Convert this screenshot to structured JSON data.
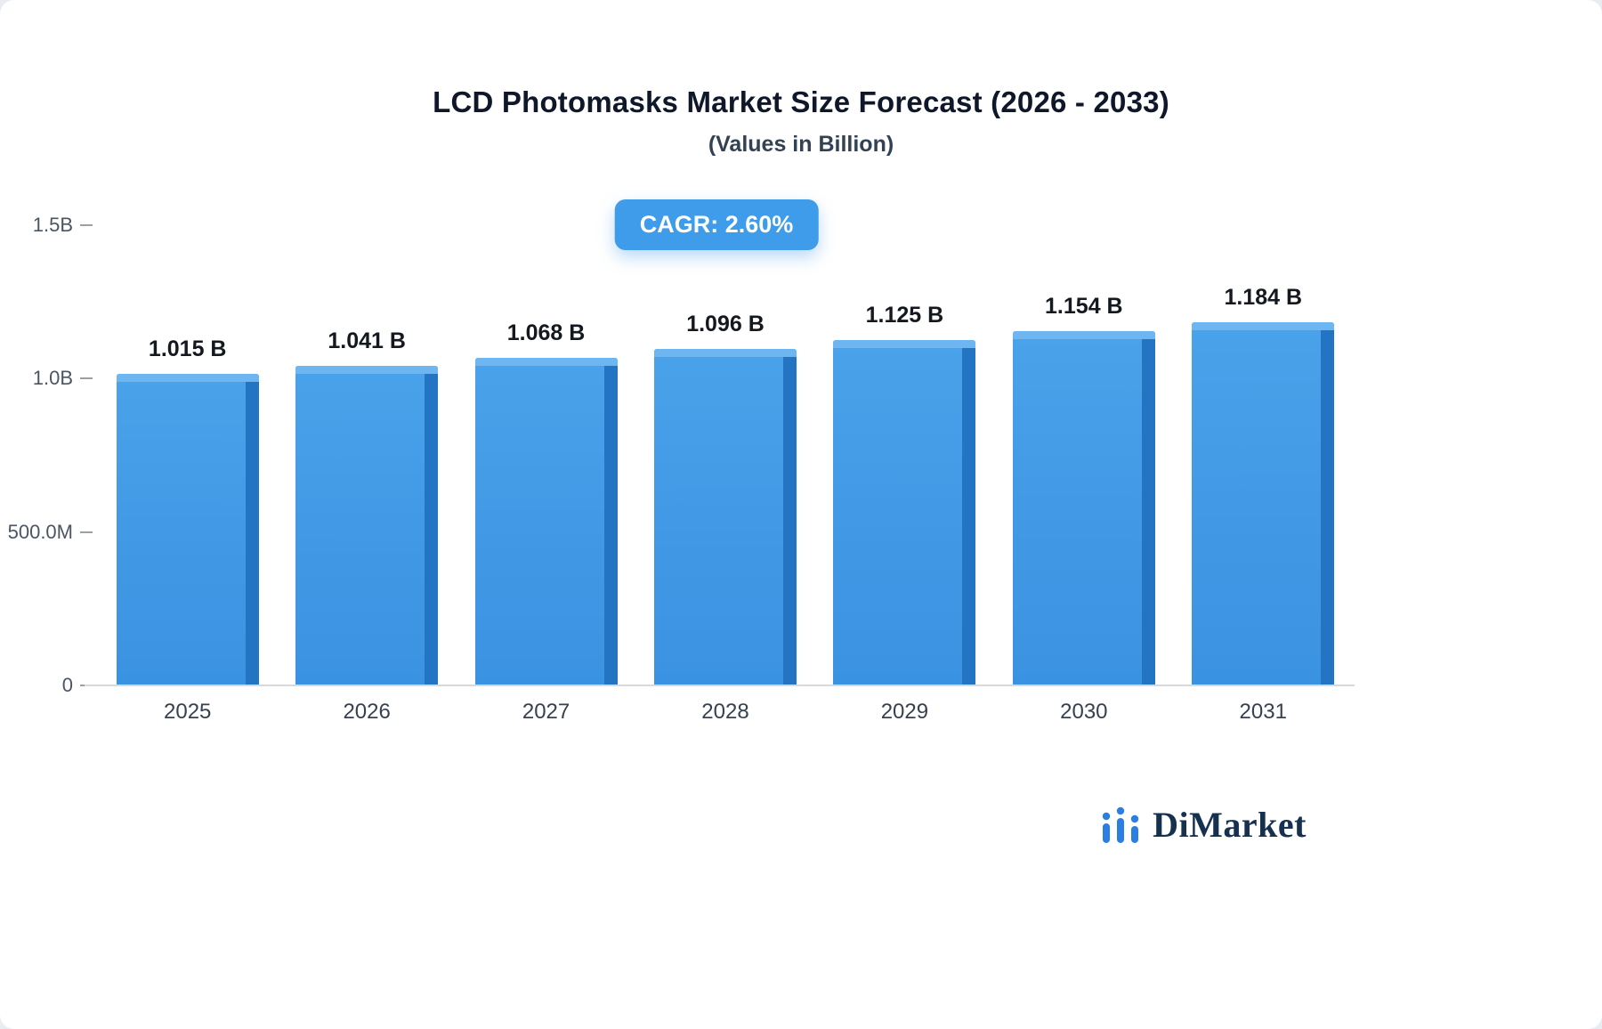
{
  "title": "LCD Photomasks Market Size Forecast (2026 - 2033)",
  "subtitle": "(Values in Billion)",
  "cagr_badge": "CAGR: 2.60%",
  "brand": {
    "name": "DiMarket"
  },
  "chart_data": {
    "type": "bar",
    "categories": [
      "2025",
      "2026",
      "2027",
      "2028",
      "2029",
      "2030",
      "2031"
    ],
    "values": [
      1.015,
      1.041,
      1.068,
      1.096,
      1.125,
      1.154,
      1.184
    ],
    "value_labels": [
      "1.015 B",
      "1.041 B",
      "1.068 B",
      "1.096 B",
      "1.125 B",
      "1.154 B",
      "1.184 B"
    ],
    "title": "LCD Photomasks Market Size Forecast (2026 - 2033)",
    "xlabel": "",
    "ylabel": "",
    "ylim": [
      0,
      1.5
    ],
    "yticks": [
      {
        "value": 1.5,
        "label": "1.5B"
      },
      {
        "value": 1.0,
        "label": "1.0B"
      },
      {
        "value": 0.5,
        "label": "500.0M"
      },
      {
        "value": 0,
        "label": "0"
      }
    ],
    "legend": "none",
    "grid": "off",
    "bar_color": "#3d9ae8",
    "bar_color_dark": "#2474c4",
    "bar_color_light": "#6db6f1",
    "accent_color": "#3f9ceb"
  }
}
